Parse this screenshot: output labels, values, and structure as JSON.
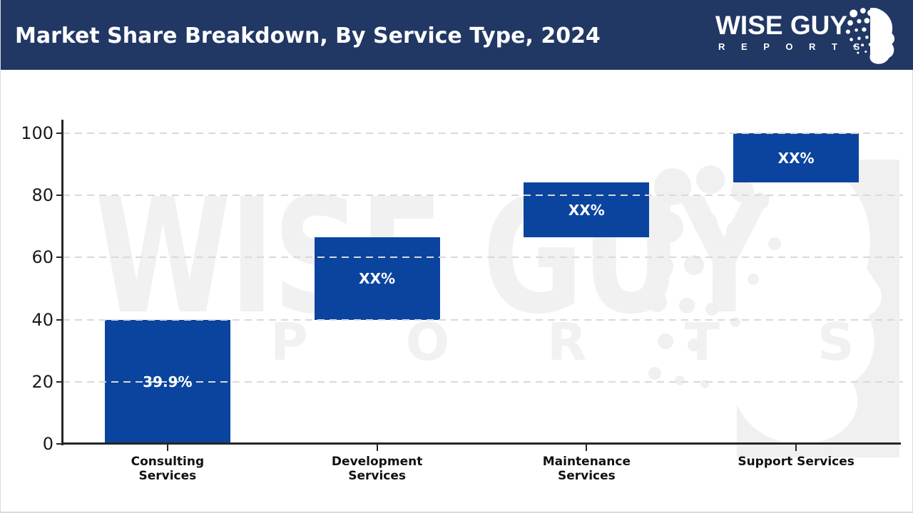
{
  "header": {
    "title": "Market Share Breakdown, By Service Type, 2024",
    "logo": {
      "line1": "WISE GUY",
      "line2": "R E P O R T S"
    }
  },
  "watermark": {
    "line1": "WISE GUY",
    "line2": "P O R T S"
  },
  "chart_data": {
    "type": "bar",
    "subtype": "floating-waterfall",
    "title": "Market Share Breakdown, By Service Type, 2024",
    "categories": [
      "Consulting Services",
      "Development Services",
      "Maintenance Services",
      "Support Services"
    ],
    "bars": [
      {
        "category": "Consulting Services",
        "label_lines": [
          "Consulting",
          "Services"
        ],
        "start": 0,
        "end": 39.9,
        "span": 39.9,
        "value_label": "39.9%"
      },
      {
        "category": "Development Services",
        "label_lines": [
          "Development",
          "Services"
        ],
        "start": 39.9,
        "end": 66.4,
        "span": 26.5,
        "value_label": "XX%"
      },
      {
        "category": "Maintenance Services",
        "label_lines": [
          "Maintenance",
          "Services"
        ],
        "start": 66.4,
        "end": 84.1,
        "span": 17.7,
        "value_label": "XX%"
      },
      {
        "category": "Support Services",
        "label_lines": [
          "Support Services"
        ],
        "start": 84.1,
        "end": 100.0,
        "span": 15.9,
        "value_label": "XX%"
      }
    ],
    "xlabel": "",
    "ylabel": "",
    "yticks": [
      0,
      20,
      40,
      60,
      80,
      100
    ],
    "ylim": [
      0,
      105
    ],
    "grid": "horizontal-dashed-above-bars",
    "legend": "none",
    "bar_color": "#0a449e",
    "value_label_color": "#ffffff"
  },
  "colors": {
    "header_bg": "#213764",
    "bar_blue": "#0a449e",
    "grid_gray": "#d9d9d9",
    "axis_dark": "#262626",
    "watermark_gray": "#f1f1f1",
    "title_text": "#ffffff"
  }
}
